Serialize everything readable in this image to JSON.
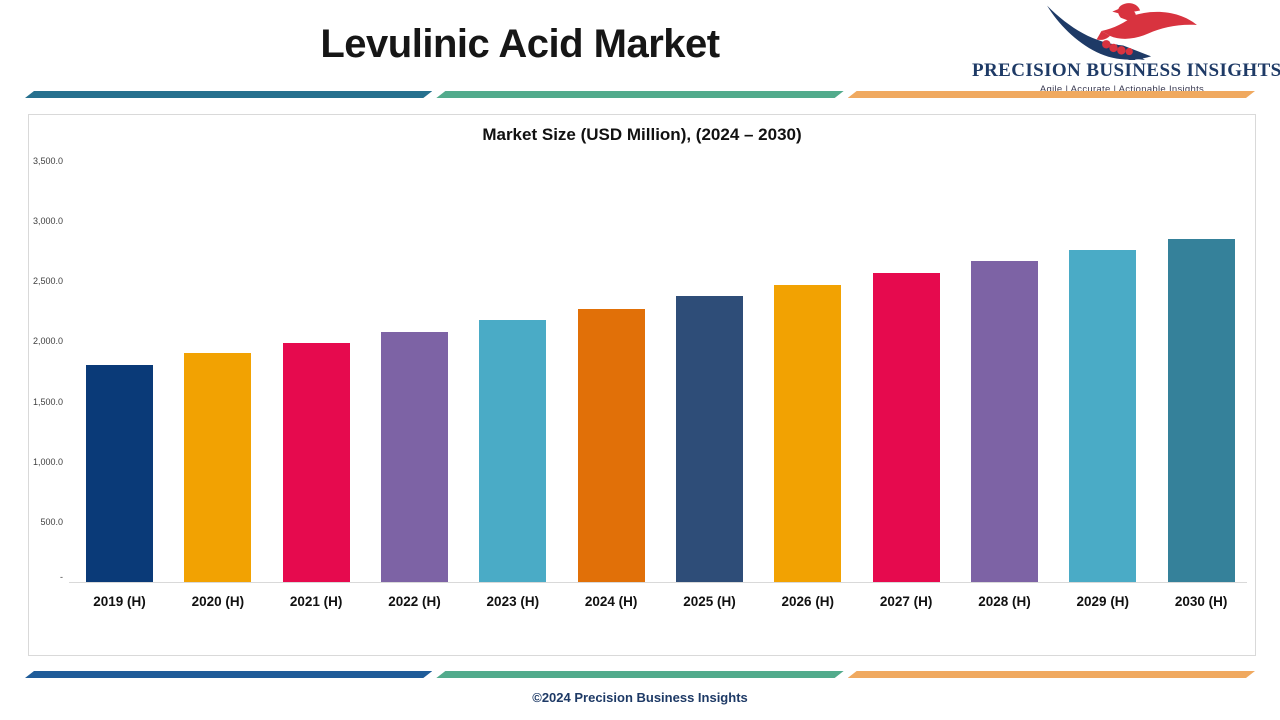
{
  "page": {
    "title": "Levulinic Acid Market",
    "footer": "©2024 Precision Business Insights"
  },
  "logo": {
    "name": "PRECISION BUSINESS INSIGHTS",
    "tagline": "Agile | Accurate | Actionable Insights",
    "icon": "eagle-logo-icon",
    "navy": "#1e3a66",
    "red": "#d8333f"
  },
  "dividers": {
    "top_colors": [
      "#26708e",
      "#52ab8c",
      "#f0a95f"
    ],
    "bottom_colors": [
      "#1f5c99",
      "#52ab8c",
      "#f0a95f"
    ]
  },
  "chart_data": {
    "type": "bar",
    "title": "Market Size (USD Million), (2024 – 2030)",
    "categories": [
      "2019 (H)",
      "2020 (H)",
      "2021 (H)",
      "2022 (H)",
      "2023 (H)",
      "2024 (H)",
      "2025 (H)",
      "2026 (H)",
      "2027 (H)",
      "2028 (H)",
      "2029 (H)",
      "2030 (H)"
    ],
    "values": [
      1800,
      1900,
      1985,
      2080,
      2175,
      2270,
      2375,
      2465,
      2570,
      2665,
      2760,
      2855
    ],
    "bar_colors": [
      "#0a3a78",
      "#f2a202",
      "#e60a4e",
      "#7d63a5",
      "#4aabc6",
      "#e17008",
      "#2e4d78",
      "#f2a202",
      "#e60a4e",
      "#7d63a5",
      "#4aabc6",
      "#35819a"
    ],
    "xlabel": "",
    "ylabel": "",
    "ylim": [
      0,
      3500
    ],
    "y_tick_interval": 500,
    "y_tick_labels": [
      "-",
      "500.0",
      "1,000.0",
      "1,500.0",
      "2,000.0",
      "2,500.0",
      "3,000.0",
      "3,500.0"
    ],
    "grid": false,
    "legend": "none"
  }
}
